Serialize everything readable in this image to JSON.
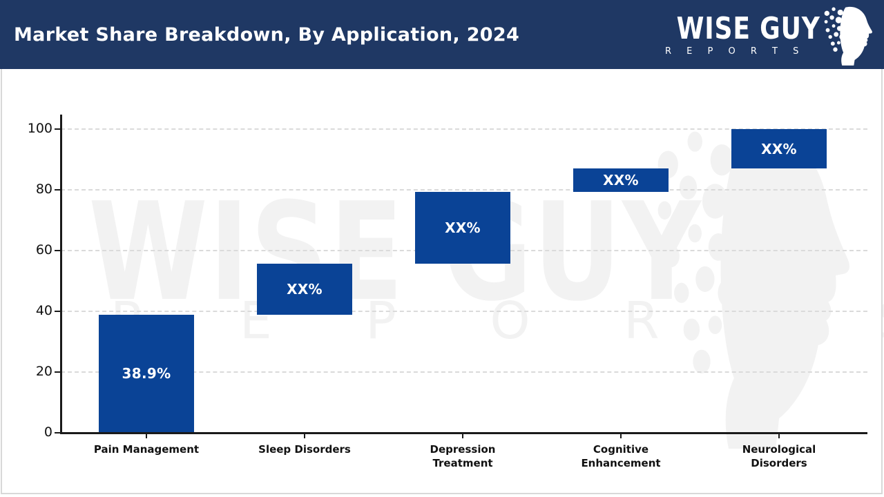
{
  "header": {
    "title": "Market Share Breakdown, By Application, 2024",
    "logo": {
      "line1": "WISE GUY",
      "line2": "R E P O R T S"
    }
  },
  "watermark": {
    "line1": "WISE GUY",
    "line2": "R E P O R T S"
  },
  "chart_data": {
    "type": "bar",
    "subtype": "waterfall",
    "title": "Market Share Breakdown, By Application, 2024",
    "categories": [
      "Pain Management",
      "Sleep Disorders",
      "Depression\nTreatment",
      "Cognitive\nEnhancement",
      "Neurological\nDisorders"
    ],
    "series": [
      {
        "name": "Market Share",
        "segments": [
          {
            "category": "Pain Management",
            "start": 0,
            "end": 38.9,
            "label": "38.9%"
          },
          {
            "category": "Sleep Disorders",
            "start": 38.9,
            "end": 55.6,
            "label": "XX%"
          },
          {
            "category": "Depression Treatment",
            "start": 55.6,
            "end": 79.4,
            "label": "XX%"
          },
          {
            "category": "Cognitive Enhancement",
            "start": 79.4,
            "end": 87.0,
            "label": "XX%"
          },
          {
            "category": "Neurological Disorders",
            "start": 87.0,
            "end": 100.0,
            "label": "XX%"
          }
        ]
      }
    ],
    "xlabel": "",
    "ylabel": "",
    "ylim": [
      0,
      100
    ],
    "yticks": [
      0,
      20,
      40,
      60,
      80,
      100
    ],
    "grid": "horizontal-dashed",
    "legend": "none",
    "bar_color": "#0a4396",
    "bar_label_color": "#ffffff"
  },
  "colors": {
    "header_bg": "#1f3864",
    "header_text": "#ffffff",
    "bar": "#0a4396",
    "grid": "#dadada",
    "axis": "#1a1a1a",
    "watermark": "#f2f2f2",
    "frame_border": "#d8d8d8"
  },
  "icons": {
    "logo_head": "wiseguy-head-icon",
    "watermark_head": "wiseguy-head-watermark-icon"
  }
}
